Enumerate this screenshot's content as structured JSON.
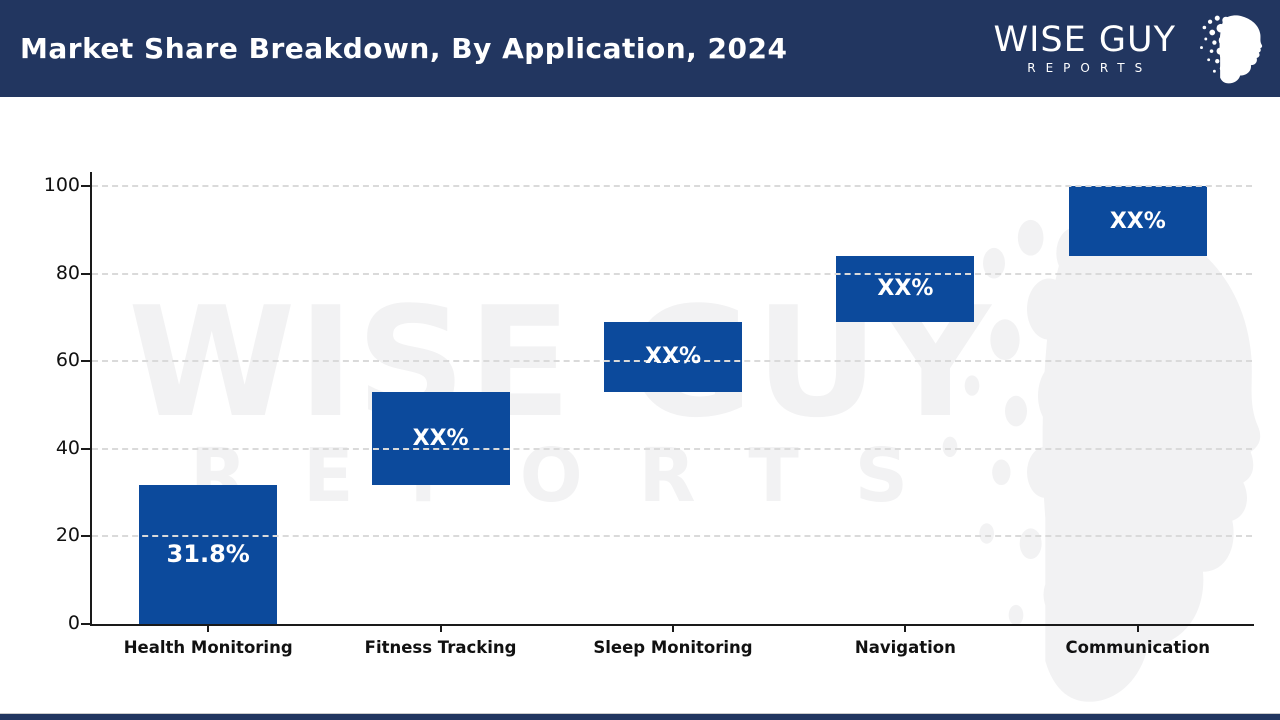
{
  "header": {
    "title": "Market Share Breakdown, By Application, 2024",
    "bg_color": "#223660",
    "logo": {
      "line1": "WISE GUY",
      "line2": "REPORTS"
    }
  },
  "watermark": {
    "line1": "WISE GUY",
    "line2": "REPORTS"
  },
  "chart_data": {
    "type": "bar",
    "subtype": "waterfall-floating-bars",
    "title": "Market Share Breakdown, By Application, 2024",
    "categories": [
      "Health Monitoring",
      "Fitness Tracking",
      "Sleep Monitoring",
      "Navigation",
      "Communication"
    ],
    "segments": [
      {
        "category": "Health Monitoring",
        "start": 0,
        "end": 31.8,
        "label": "31.8%"
      },
      {
        "category": "Fitness Tracking",
        "start": 31.8,
        "end": 53,
        "label": "XX%"
      },
      {
        "category": "Sleep Monitoring",
        "start": 53,
        "end": 69,
        "label": "XX%"
      },
      {
        "category": "Navigation",
        "start": 69,
        "end": 84,
        "label": "XX%"
      },
      {
        "category": "Communication",
        "start": 84,
        "end": 100,
        "label": "XX%"
      }
    ],
    "xlabel": "",
    "ylabel": "",
    "yticks": [
      0,
      20,
      40,
      60,
      80,
      100
    ],
    "ylim": [
      0,
      104
    ],
    "grid": "dashed-horizontal-over-bars",
    "legend": "none",
    "bar_color": "#0c4a9c",
    "bar_label_color": "#ffffff",
    "axis_color": "#1a1a1a",
    "gridline_color": "#dadada"
  }
}
